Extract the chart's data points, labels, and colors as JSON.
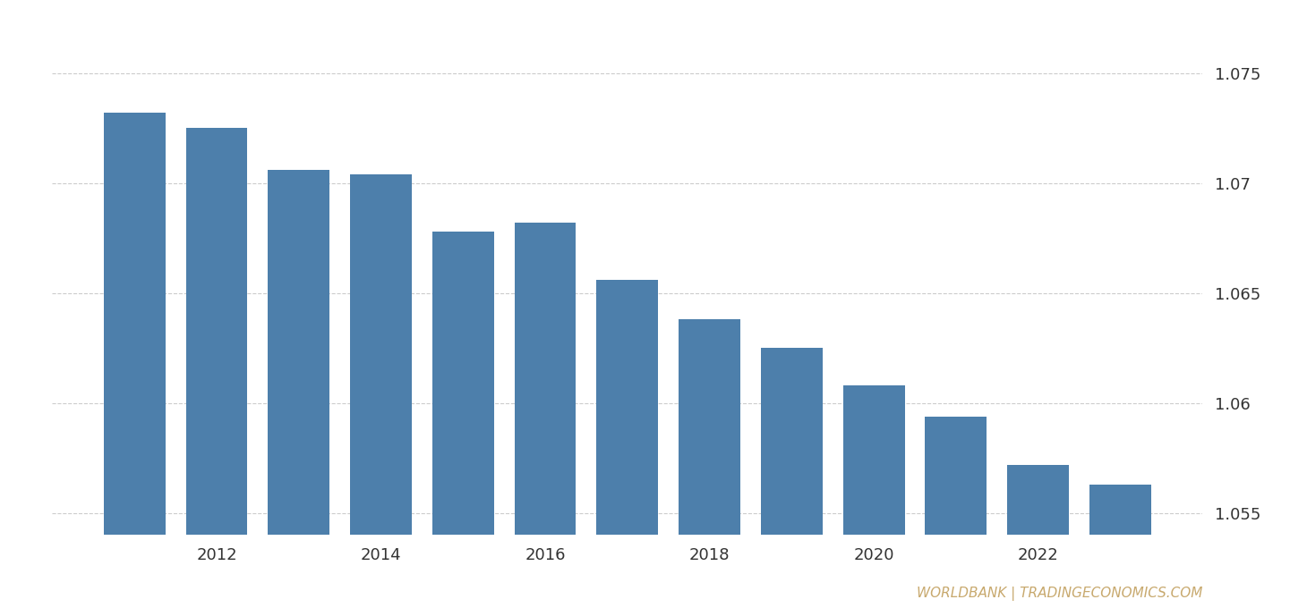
{
  "years": [
    2011,
    2012,
    2013,
    2014,
    2015,
    2016,
    2017,
    2018,
    2019,
    2020,
    2021,
    2022,
    2023
  ],
  "values": [
    1.0732,
    1.0725,
    1.0706,
    1.0704,
    1.0678,
    1.0682,
    1.0656,
    1.0638,
    1.0625,
    1.0608,
    1.0594,
    1.0572,
    1.0563
  ],
  "bar_color": "#4d7fab",
  "background_color": "#ffffff",
  "yticks": [
    1.055,
    1.06,
    1.065,
    1.07,
    1.075
  ],
  "ytick_labels": [
    "1.055",
    "1.06",
    "1.065",
    "1.07",
    "1.075"
  ],
  "ylim": [
    1.054,
    1.0775
  ],
  "xtick_years": [
    2012,
    2014,
    2016,
    2018,
    2020,
    2022
  ],
  "watermark": "WORLDBANK | TRADINGECONOMICS.COM",
  "watermark_color": "#c8a96e",
  "grid_color": "#cccccc",
  "bar_width": 0.75
}
